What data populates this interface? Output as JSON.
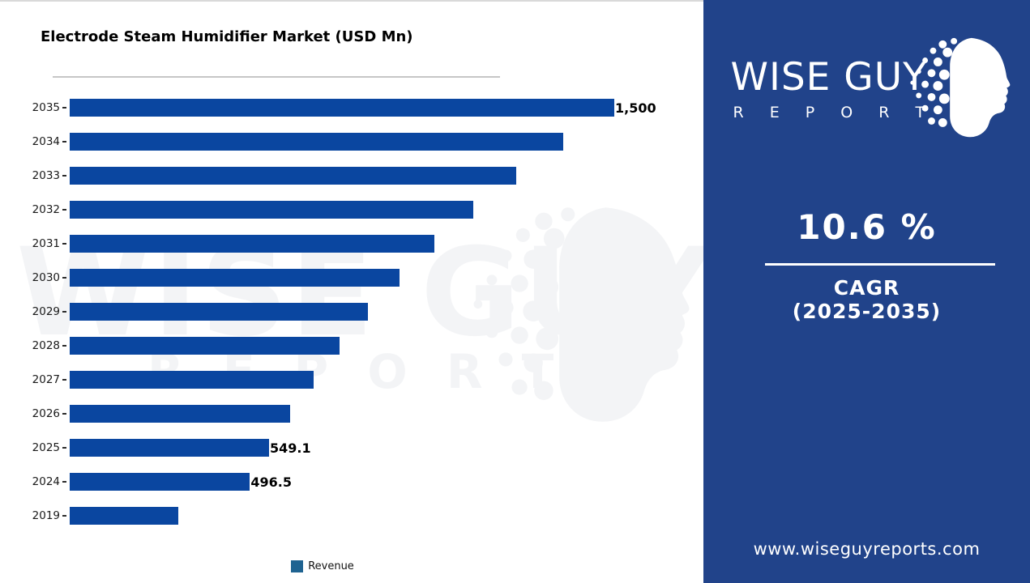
{
  "chart": {
    "title": "Electrode Steam Humidifier Market (USD Mn)"
  },
  "chart_data": {
    "type": "bar",
    "orientation": "horizontal",
    "title": "Electrode Steam Humidifier Market (USD Mn)",
    "categories": [
      "2035",
      "2034",
      "2033",
      "2032",
      "2031",
      "2030",
      "2029",
      "2028",
      "2027",
      "2026",
      "2025",
      "2024",
      "2019"
    ],
    "values": [
      1500,
      1359.6,
      1229.3,
      1111.5,
      1005.0,
      908.7,
      821.6,
      742.9,
      671.7,
      607.3,
      549.1,
      496.5,
      300
    ],
    "bar_labels": [
      "1,500",
      "",
      "",
      "",
      "",
      "",
      "",
      "",
      "",
      "",
      "549.1",
      "496.5",
      ""
    ],
    "series_name": "Revenue",
    "xlabel": "",
    "ylabel": "",
    "xlim": [
      0,
      1640
    ],
    "x_axis_visible": false,
    "grid": false,
    "legend_position": "bottom-center",
    "legend_label": "Revenue",
    "bar_color": "#0a46a0",
    "legend_swatch_color": "#1f6391"
  },
  "watermark": {
    "line1": "WISE GUY",
    "line2": "R E P O R T S"
  },
  "sidebar": {
    "background_color": "#21438a",
    "logo_line1": "WISE GUY",
    "logo_line2": "R E P O R T S",
    "cagr_value": "10.6 %",
    "cagr_label": "CAGR",
    "cagr_range": "(2025-2035)",
    "website": "www.wiseguyreports.com"
  }
}
